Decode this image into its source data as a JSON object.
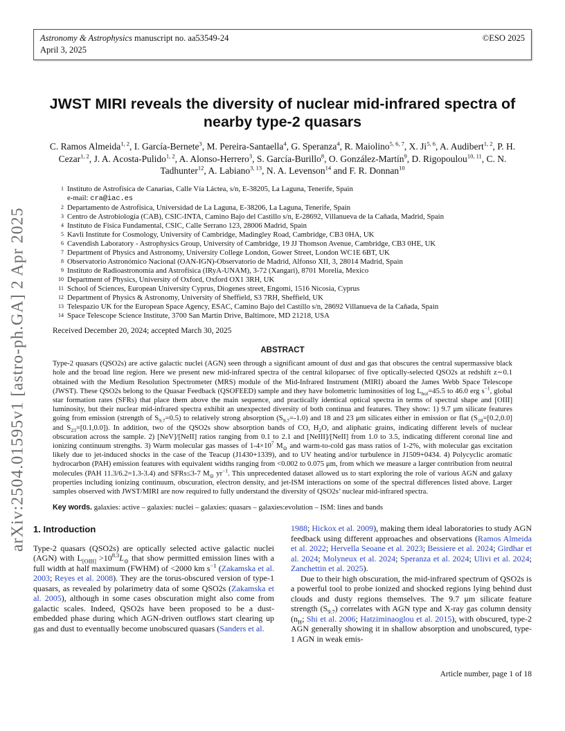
{
  "colors": {
    "citation_blue": "#2440c4",
    "stamp_gray": "#6b6b6b"
  },
  "arxiv_banner": {
    "text": "arXiv:2504.01595v1  [astro-ph.GA]  2 Apr 2025"
  },
  "header": {
    "journal_name": "Astronomy & Astrophysics",
    "manuscript_no": " manuscript no. aa53549-24",
    "date": "April 3, 2025",
    "copyright": "©ESO 2025"
  },
  "title": "JWST MIRI reveals the diversity of nuclear mid-infrared spectra of nearby type-2 quasars",
  "authors": [
    {
      "name": "C. Ramos Almeida",
      "sup": "1, 2"
    },
    {
      "name": "I. García-Bernete",
      "sup": "3"
    },
    {
      "name": "M. Pereira-Santaella",
      "sup": "4"
    },
    {
      "name": "G. Speranza",
      "sup": "4"
    },
    {
      "name": "R. Maiolino",
      "sup": "5, 6, 7"
    },
    {
      "name": "X. Ji",
      "sup": "5, 6"
    },
    {
      "name": "A. Audibert",
      "sup": "1, 2"
    },
    {
      "name": "P. H. Cezar",
      "sup": "1, 2"
    },
    {
      "name": "J. A. Acosta-Pulido",
      "sup": "1, 2"
    },
    {
      "name": "A. Alonso-Herrero",
      "sup": "3"
    },
    {
      "name": "S. García-Burillo",
      "sup": "8"
    },
    {
      "name": "O. González-Martín",
      "sup": "9"
    },
    {
      "name": "D. Rigopoulou",
      "sup": "10, 11"
    },
    {
      "name": "C. N. Tadhunter",
      "sup": "12"
    },
    {
      "name": "A. Labiano",
      "sup": "3, 13"
    },
    {
      "name": "N. A. Levenson",
      "sup": "14"
    },
    {
      "name": "F. R. Donnan",
      "sup": "10"
    }
  ],
  "affiliations": [
    {
      "num": "1",
      "text": "Instituto de Astrofísica de Canarias, Calle Vía Láctea, s/n, E-38205, La Laguna, Tenerife, Spain",
      "email_label": "e-mail: ",
      "email": "cra@iac.es"
    },
    {
      "num": "2",
      "text": "Departamento de Astrofísica, Universidad de La Laguna, E-38206, La Laguna, Tenerife, Spain"
    },
    {
      "num": "3",
      "text": "Centro de Astrobiología (CAB), CSIC-INTA, Camino Bajo del Castillo s/n, E-28692, Villanueva de la Cañada, Madrid, Spain"
    },
    {
      "num": "4",
      "text": "Instituto de Física Fundamental, CSIC, Calle Serrano 123, 28006 Madrid, Spain"
    },
    {
      "num": "5",
      "text": "Kavli Institute for Cosmology, University of Cambridge, Madingley Road, Cambridge, CB3 0HA, UK"
    },
    {
      "num": "6",
      "text": "Cavendish Laboratory - Astrophysics Group, University of Cambridge, 19 JJ Thomson Avenue, Cambridge, CB3 0HE, UK"
    },
    {
      "num": "7",
      "text": "Department of Physics and Astronomy, University College London, Gower Street, London WC1E 6BT, UK"
    },
    {
      "num": "8",
      "text": "Observatorio Astronómico Nacional (OAN-IGN)-Observatorio de Madrid, Alfonso XII, 3, 28014 Madrid, Spain"
    },
    {
      "num": "9",
      "text": "Instituto de Radioastronomía and Astrofísica (IRyA-UNAM), 3-72 (Xangari), 8701 Morelia, Mexico"
    },
    {
      "num": "10",
      "text": "Department of Physics, University of Oxford, Oxford OX1 3RH, UK"
    },
    {
      "num": "11",
      "text": "School of Sciences, European University Cyprus, Diogenes street, Engomi, 1516 Nicosia, Cyprus"
    },
    {
      "num": "12",
      "text": "Department of Physics & Astronomy, University of Sheffield, S3 7RH, Sheffield, UK"
    },
    {
      "num": "13",
      "text": "Telespazio UK for the European Space Agency, ESAC, Camino Bajo del Castillo s/n, 28692 Villanueva de la Cañada, Spain"
    },
    {
      "num": "14",
      "text": "Space Telescope Science Institute, 3700 San Martin Drive, Baltimore, MD 21218, USA"
    }
  ],
  "received": "Received December 20, 2024; accepted March 30, 2025",
  "abstract": {
    "heading": "ABSTRACT",
    "body_html": "Type-2 quasars (QSO2s) are active galactic nuclei (AGN) seen through a significant amount of dust and gas that obscures the central supermassive black hole and the broad line region. Here we present new mid-infrared spectra of the central kiloparsec of five optically-selected QSO2s at redshift z∼0.1 obtained with the Medium Resolution Spectrometer (MRS) module of the Mid-Infrared Instrument (MIRI) aboard the James Webb Space Telescope (JWST). These QSO2s belong to the Quasar Feedback (QSOFEED) sample and they have bolometric luminosities of log L<sub>bol</sub>=45.5 to 46.0 erg s<sup>−1</sup>, global star formation rates (SFRs) that place them above the main sequence, and practically identical optical spectra in terms of spectral shape and [OIII] luminosity, but their nuclear mid-infrared spectra exhibit an unexpected diversity of both continua and features. They show: 1) 9.7 μm silicate features going from emission (strength of S<sub>9.7</sub>=0.5) to relatively strong absorption (S<sub>9.7</sub>=-1.0) and 18 and 23 μm silicates either in emission or flat (S<sub>18</sub>=[0.2,0.0] and S<sub>23</sub>=[0.1,0.0]). In addition, two of the QSO2s show absorption bands of CO, H<sub>2</sub>O, and aliphatic grains, indicating different levels of nuclear obscuration across the sample. 2) [NeV]/[NeII] ratios ranging from 0.1 to 2.1 and [NeIII]/[NeII] from 1.0 to 3.5, indicating different coronal line and ionizing continuum strengths. 3) Warm molecular gas masses of 1-4×10<sup>7</sup> M<sub>⊙</sub> and warm-to-cold gas mass ratios of 1-2%, with molecular gas excitation likely due to jet-induced shocks in the case of the Teacup (J1430+1339), and to UV heating and/or turbulence in J1509+0434. 4) Polycyclic aromatic hydrocarbon (PAH) emission features with equivalent widths ranging from &lt;0.002 to 0.075 μm, from which we measure a larger contribution from neutral molecules (PAH 11.3/6.2=1.3-3.4) and SFRs≤3-7 M<sub>⊙</sub> yr<sup>−1</sup>. This unprecedented dataset allowed us to start exploring the role of various AGN and galaxy properties including ionizing continuum, obscuration, electron density, and jet-ISM interactions on some of the spectral differences listed above. Larger samples observed with JWST/MIRI are now required to fully understand the diversity of QSO2s’ nuclear mid-infrared spectra."
  },
  "keywords": {
    "label": "Key words.",
    "text": "galaxies: active – galaxies: nuclei – galaxies: quasars – galaxies:evolution – ISM: lines and bands"
  },
  "introduction": {
    "heading": "1. Introduction",
    "left_column_html": "Type-2 quasars (QSO2s) are optically selected active galactic nuclei (AGN) with L<sub>[OIII]</sub> &gt;10<sup>8.3</sup><i>L</i><sub>⊙</sub> that show permitted emission lines with a full width at half maximum (FWHM) of &lt;2000 km s<sup>−1</sup> (<span class='c'>Zakamska et al. 2003</span>; <span class='c'>Reyes et al. 2008</span>). They are the torus-obscured version of type-1 quasars, as revealed by polarimetry data of some QSO2s (<span class='c'>Zakamska et al. 2005</span>), although in some cases obscuration might also come from galactic scales. Indeed, QSO2s have been proposed to be a dust-embedded phase during which AGN-driven outflows start clearing up gas and dust to eventually become unobscured quasars (<span class='c'>Sanders et al.</span>",
    "right_column_p1_html": "<span class='c'>1988</span>; <span class='c'>Hickox et al. 2009</span>), making them ideal laboratories to study AGN feedback using different approaches and observations (<span class='c'>Ramos Almeida et al. 2022</span>; <span class='c'>Hervella Seoane et al. 2023</span>; <span class='c'>Bessiere et al. 2024</span>; <span class='c'>Girdhar et al. 2024</span>; <span class='c'>Molyneux et al. 2024</span>; <span class='c'>Speranza et al. 2024</span>; <span class='c'>Ulivi et al. 2024</span>; <span class='c'>Zanchettin et al. 2025</span>).",
    "right_column_p2_html": "Due to their high obscuration, the mid-infrared spectrum of QSO2s is a powerful tool to probe ionized and shocked regions lying behind dust clouds and dusty regions themselves. The 9.7 μm silicate feature strength (S<sub>9.7</sub>) correlates with AGN type and X-ray gas column density (n<sub>H</sub>; <span class='c'>Shi et al. 2006</span>; <span class='c'>Hatziminaoglou et al. 2015</span>), with obscured, type-2 AGN generally showing it in shallow absorption and unobscured, type-1 AGN in weak emis-"
  },
  "footer": {
    "text": "Article number, page 1 of 18"
  }
}
